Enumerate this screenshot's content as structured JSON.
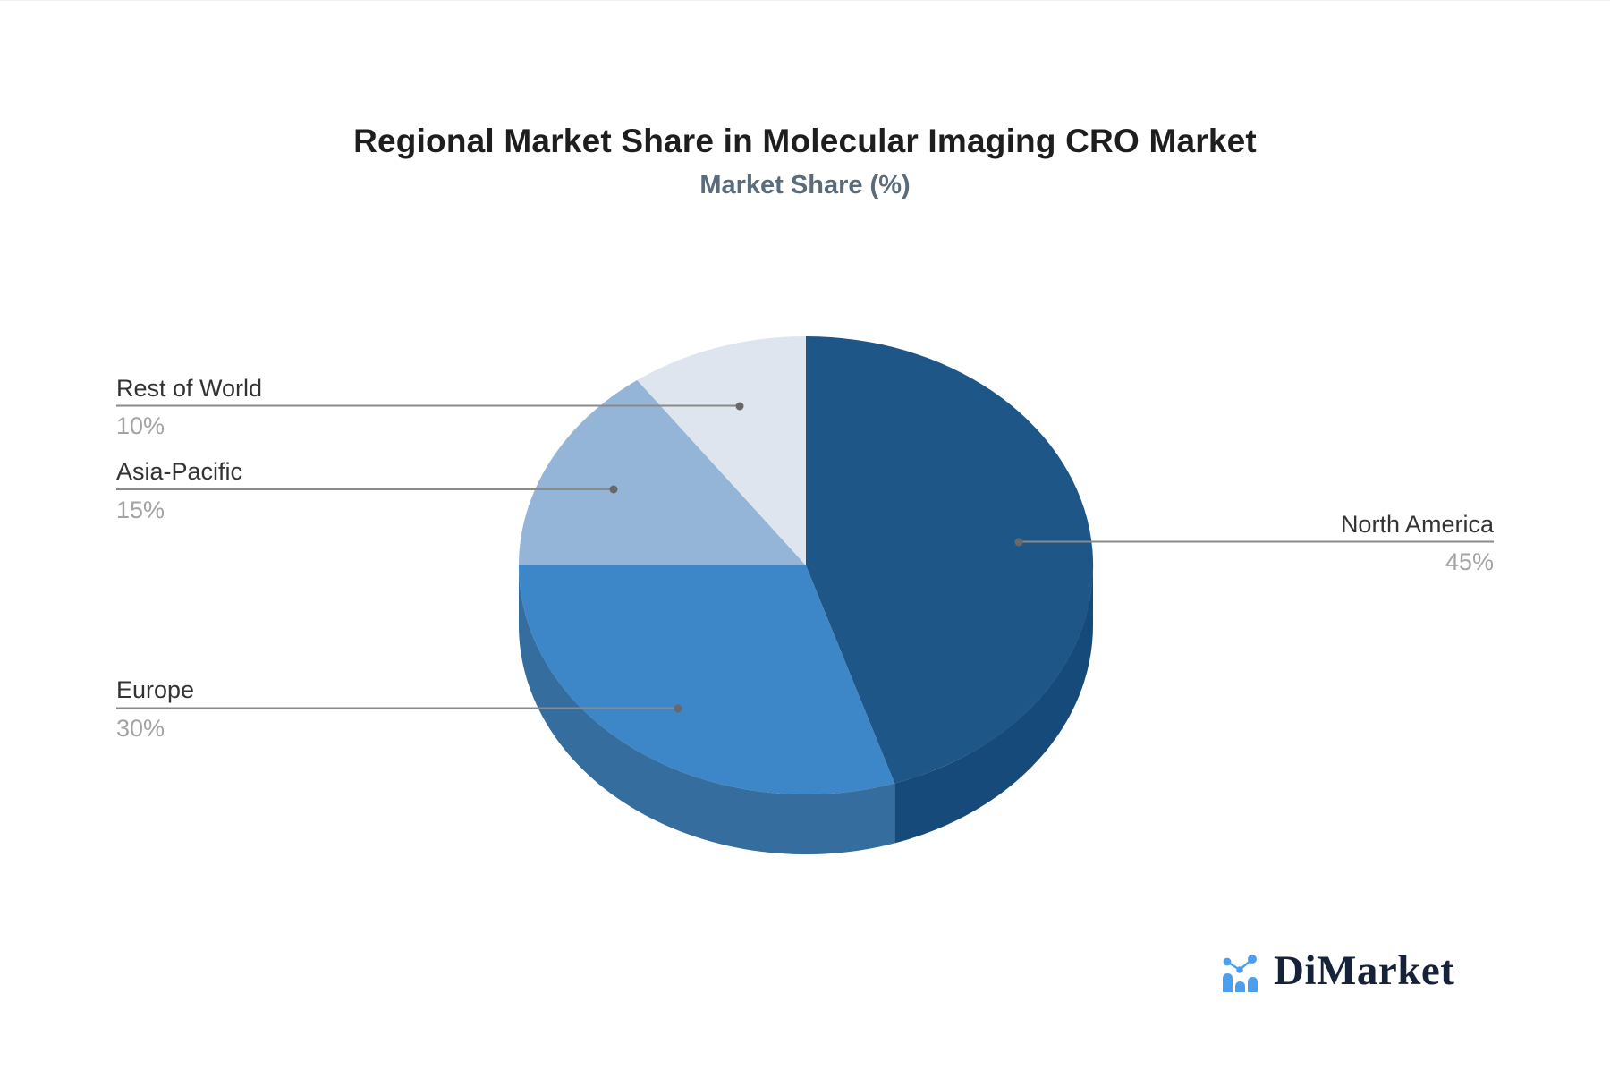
{
  "title": "Regional Market Share in Molecular Imaging CRO Market",
  "subtitle": "Market Share (%)",
  "chart_data": {
    "type": "pie",
    "style": "3d",
    "title": "Regional Market Share in Molecular Imaging CRO Market",
    "subtitle": "Market Share (%)",
    "unit": "%",
    "start_angle_deg": 0,
    "direction": "clockwise",
    "legend_position": "callout-labels",
    "categories": [
      "North America",
      "Europe",
      "Asia-Pacific",
      "Rest of World"
    ],
    "values": [
      45,
      30,
      15,
      10
    ],
    "slices": [
      {
        "label": "North America",
        "value": 45,
        "display": "45%",
        "color": "#1E5687",
        "side_color": "#164A7A"
      },
      {
        "label": "Europe",
        "value": 30,
        "display": "30%",
        "color": "#3D86C8",
        "side_color": "#346D9E"
      },
      {
        "label": "Asia-Pacific",
        "value": 15,
        "display": "15%",
        "color": "#95B5D8"
      },
      {
        "label": "Rest of World",
        "value": 10,
        "display": "10%",
        "color": "#DFE5EE"
      }
    ]
  },
  "callout_style": {
    "line_color": "#8A8A8A",
    "dot_color": "#686868",
    "label_color": "#333333",
    "value_color": "#A3A3A3"
  },
  "text_colors": {
    "title": "#1E1E1E",
    "subtitle": "#5A6B7C"
  },
  "branding": {
    "logo_text": "DiMarket",
    "logo_text_color": "#152238",
    "icon_color": "#4C9FEF"
  }
}
